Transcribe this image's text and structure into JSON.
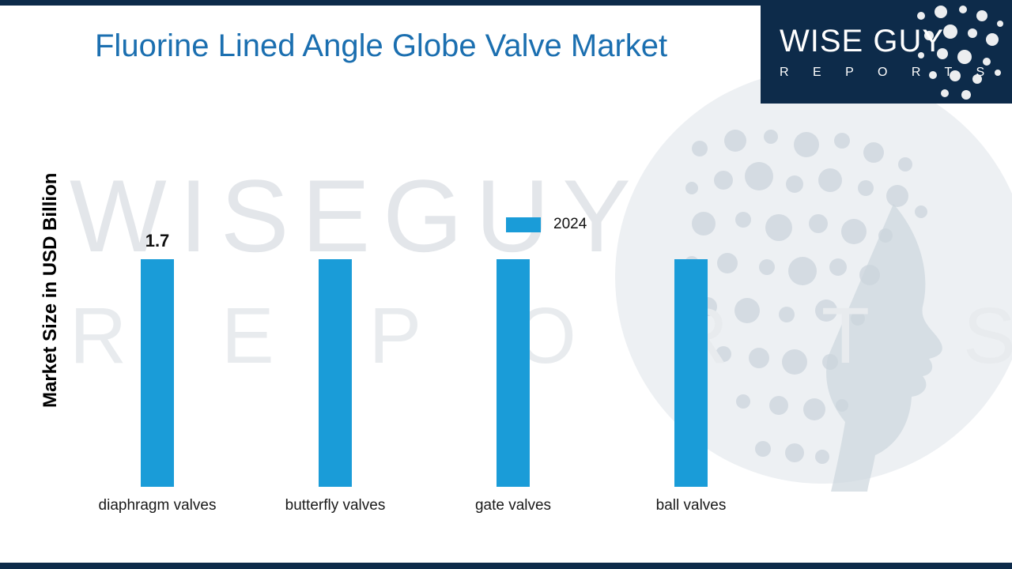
{
  "page": {
    "title": "Fluorine Lined Angle Globe Valve Market"
  },
  "logo": {
    "line1": "WISE GUY",
    "line2": "R E P O R T S"
  },
  "watermark": {
    "line1": "WISEGUY",
    "line2": "R E P O R T S"
  },
  "chart_data": {
    "type": "bar",
    "title": "Fluorine Lined Angle Globe Valve Market",
    "ylabel": "Market Size in USD Billion",
    "xlabel": "",
    "categories": [
      "diaphragm valves",
      "butterfly valves",
      "gate valves",
      "ball valves"
    ],
    "values": [
      1.7,
      1.7,
      1.7,
      1.7
    ],
    "data_labels": [
      "1.7",
      "",
      "",
      ""
    ],
    "legend": [
      {
        "label": "2024",
        "color": "#1a9cd8"
      }
    ],
    "legend_position": "top-center",
    "grid": false,
    "axes_visible": false
  },
  "colors": {
    "bar": "#1a9cd8",
    "title": "#1b6fb0",
    "navy": "#0d2b4a",
    "watermark": "#e3e6ea",
    "circle": "#edf0f3"
  }
}
